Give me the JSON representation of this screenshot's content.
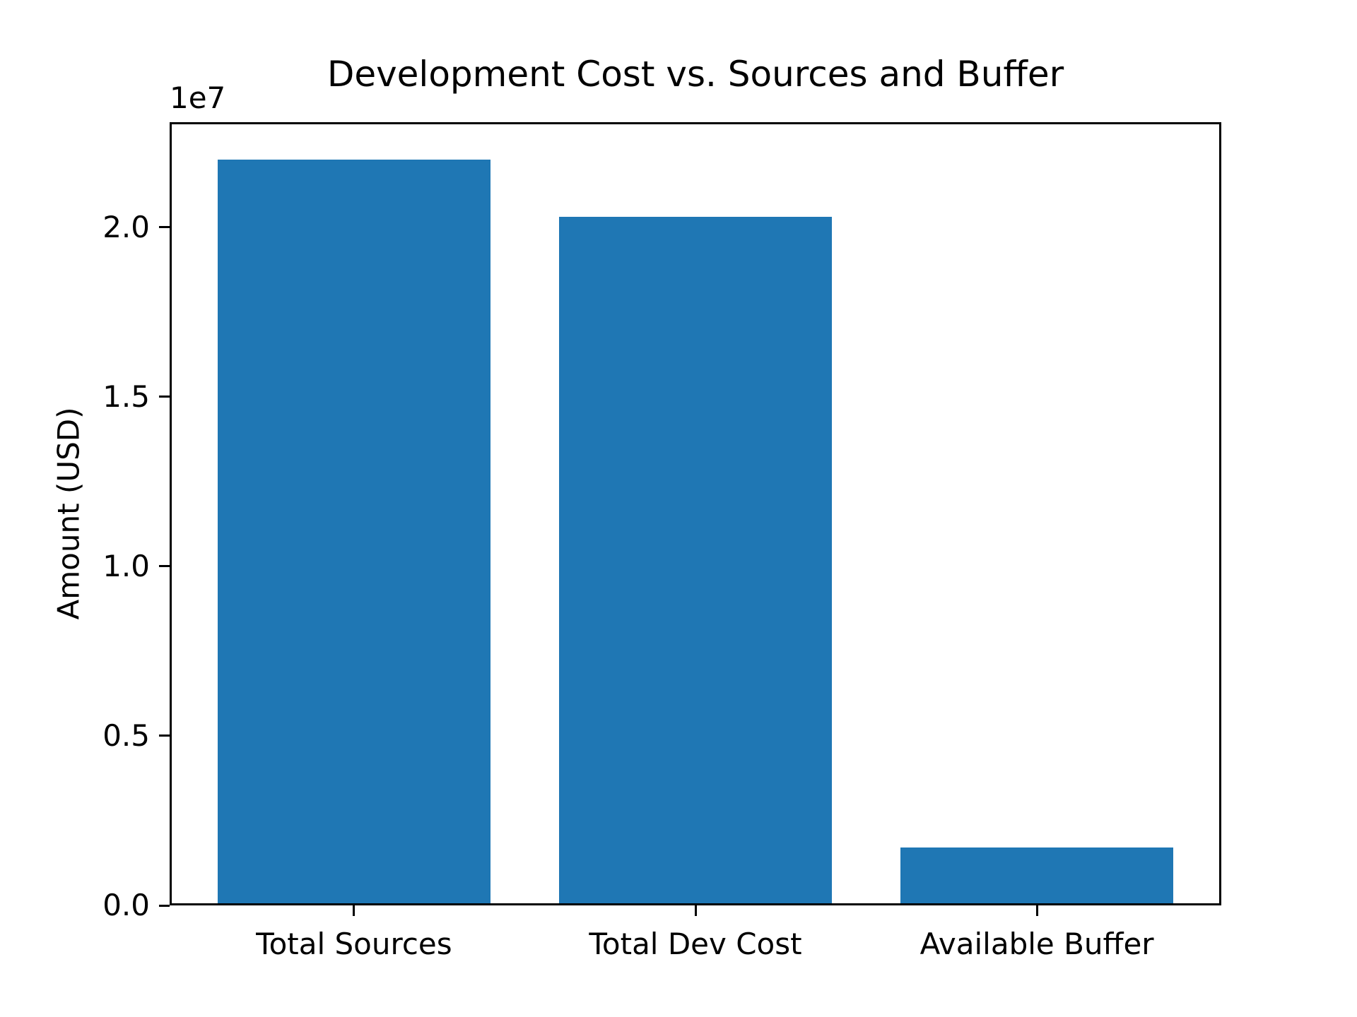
{
  "chart_data": {
    "type": "bar",
    "title": "Development Cost vs. Sources and Buffer",
    "xlabel": "",
    "ylabel": "Amount (USD)",
    "offset_text": "1e7",
    "categories": [
      "Total Sources",
      "Total Dev Cost",
      "Available Buffer"
    ],
    "values": [
      22000000,
      20300000,
      1700000
    ],
    "bar_color": "#1f77b4",
    "ylim": [
      0,
      23100000
    ],
    "yticks": [
      0,
      5000000,
      10000000,
      15000000,
      20000000
    ],
    "ytick_labels": [
      "0.0",
      "0.5",
      "1.0",
      "1.5",
      "2.0"
    ],
    "bar_width_fraction": 0.8,
    "grid": false,
    "legend_position": "none"
  }
}
